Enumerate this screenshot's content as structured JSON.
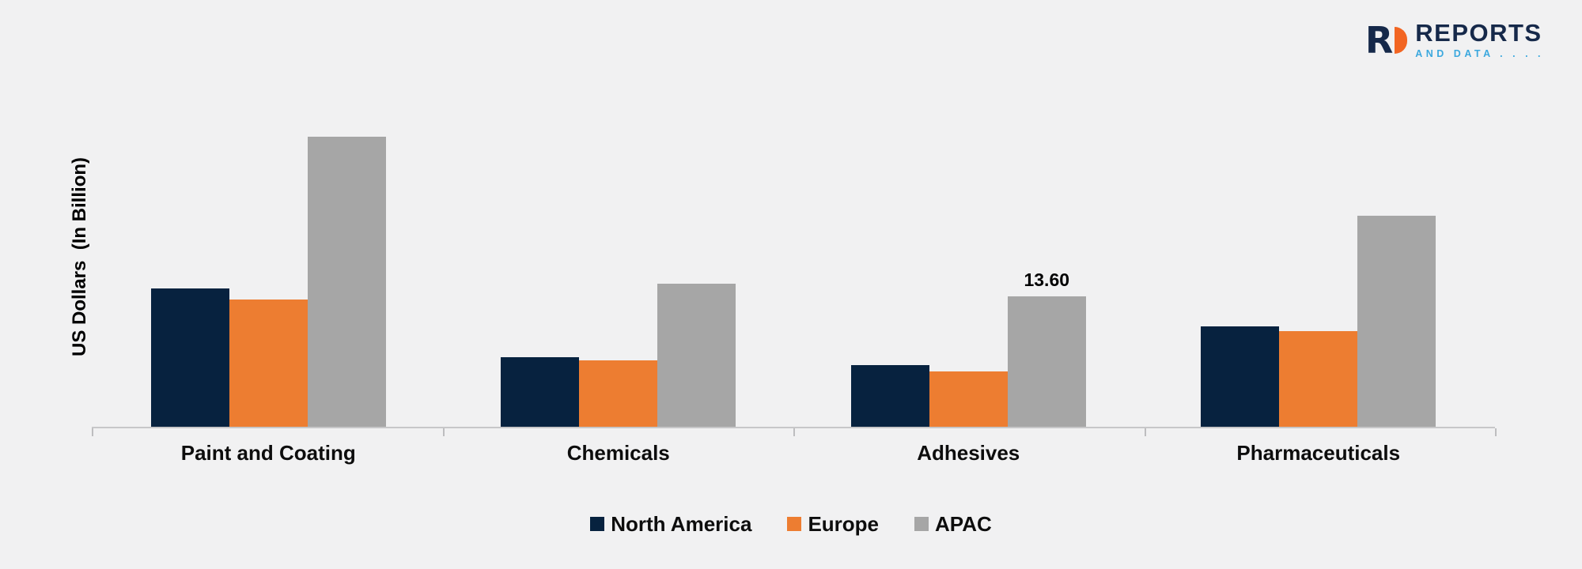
{
  "page": {
    "background": "#f1f1f2"
  },
  "logo": {
    "mark_letter": "R",
    "title": "REPORTS",
    "subtitle": "AND DATA . . . .",
    "colors": {
      "navy": "#16294a",
      "light_blue": "#3ba8de",
      "orange": "#f26522"
    }
  },
  "chart_data": {
    "type": "bar",
    "title": "",
    "xlabel": "",
    "ylabel": "US Dollars  (In Billion)",
    "categories": [
      "Paint and Coating",
      "Chemicals",
      "Adhesives",
      "Pharmaceuticals"
    ],
    "series": [
      {
        "name": "North America",
        "color": "#07223f",
        "values": [
          14.4,
          7.3,
          6.4,
          10.5
        ]
      },
      {
        "name": "Europe",
        "color": "#ed7d31",
        "values": [
          13.3,
          6.9,
          5.8,
          10.0
        ]
      },
      {
        "name": "APAC",
        "color": "#a6a6a6",
        "values": [
          30.3,
          14.9,
          13.6,
          22.0
        ]
      }
    ],
    "ylim": [
      0,
      32
    ],
    "grid": false,
    "axis_color": "#c7c7c9",
    "legend_position": "bottom",
    "data_labels": [
      {
        "series": "APAC",
        "category": "Adhesives",
        "text": "13.60"
      }
    ]
  }
}
